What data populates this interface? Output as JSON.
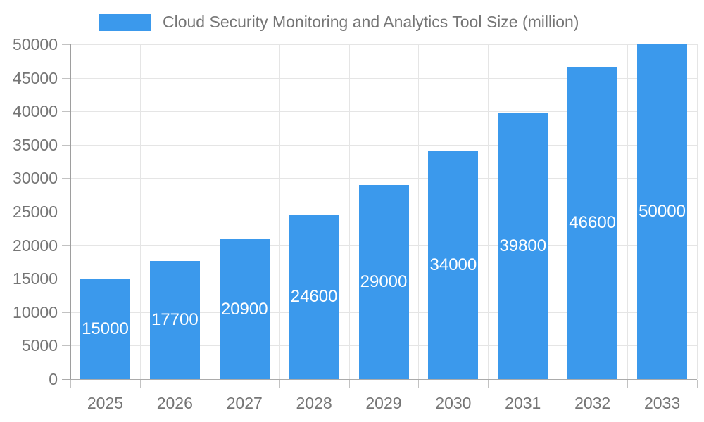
{
  "colors": {
    "bar": "#3B99EC",
    "bar_label": "#ffffff",
    "text": "#757575",
    "axis": "#9e9e9e",
    "tick": "#c2c2c2",
    "grid": "#e5e5e5",
    "background": "#ffffff"
  },
  "legend": {
    "label": "Cloud Security Monitoring and Analytics Tool Size (million)"
  },
  "chart_data": {
    "type": "bar",
    "title": "Cloud Security Monitoring and Analytics Tool Size (million)",
    "categories": [
      "2025",
      "2026",
      "2027",
      "2028",
      "2029",
      "2030",
      "2031",
      "2032",
      "2033"
    ],
    "values": [
      15000,
      17700,
      20900,
      24600,
      29000,
      34000,
      39800,
      46600,
      50000
    ],
    "value_labels": [
      "15000",
      "17700",
      "20900",
      "24600",
      "29000",
      "34000",
      "39800",
      "46600",
      "50000"
    ],
    "yticks": [
      0,
      5000,
      10000,
      15000,
      20000,
      25000,
      30000,
      35000,
      40000,
      45000,
      50000
    ],
    "ytick_labels": [
      "0",
      "5000",
      "10000",
      "15000",
      "20000",
      "25000",
      "30000",
      "35000",
      "40000",
      "45000",
      "50000"
    ],
    "xlabel": "",
    "ylabel": "",
    "ylim": [
      0,
      50000
    ],
    "grid": true,
    "legend_position": "top",
    "bar_label_position": "center-inside"
  }
}
